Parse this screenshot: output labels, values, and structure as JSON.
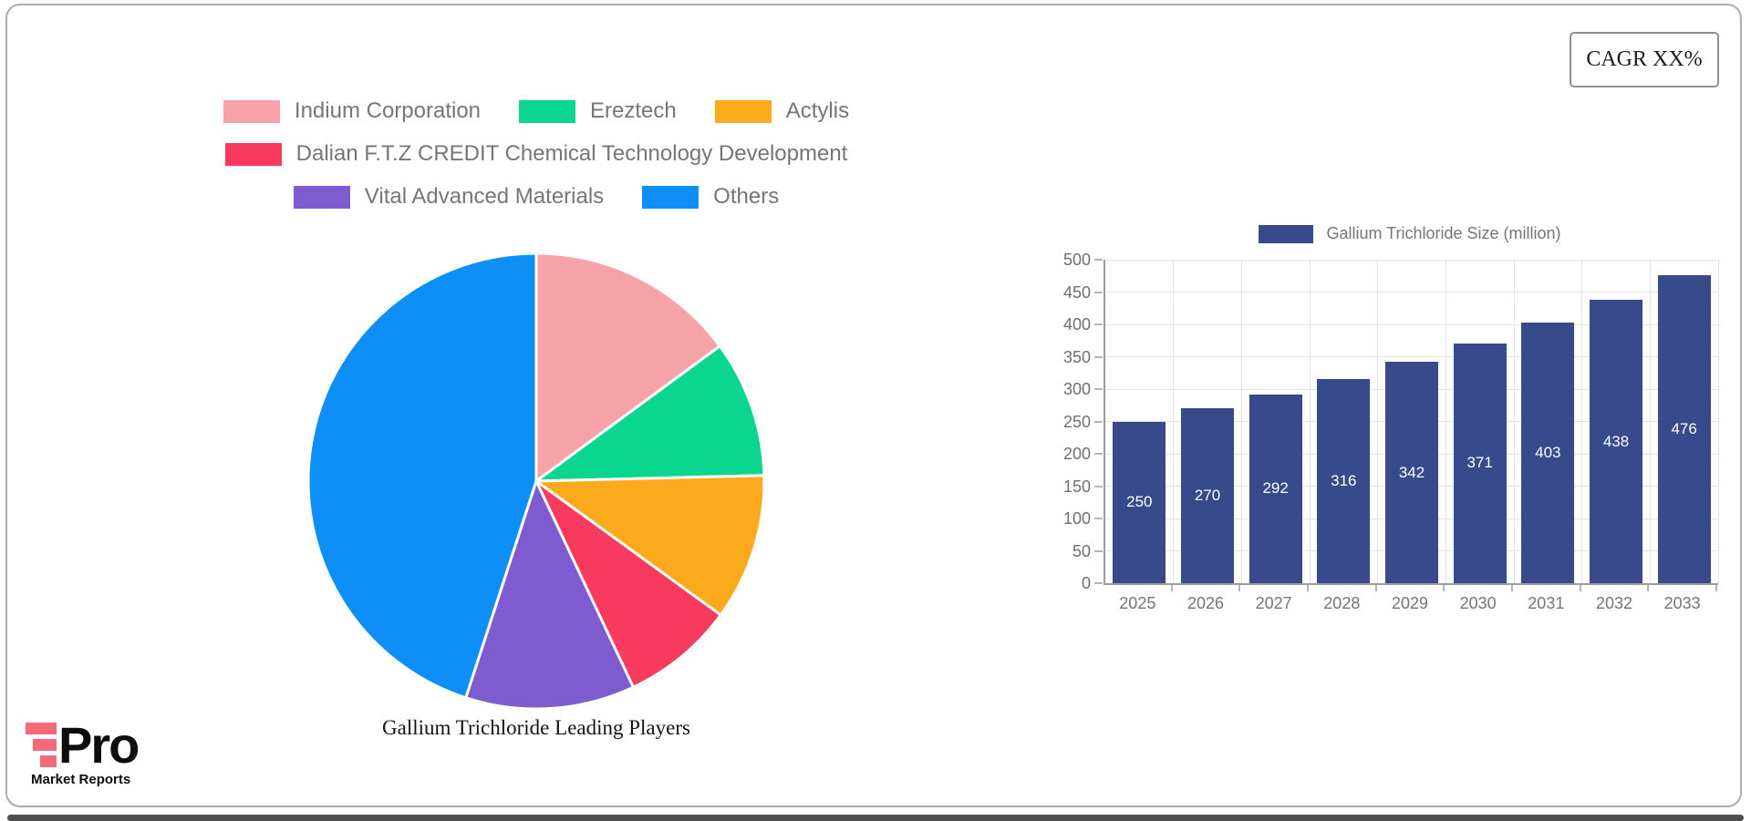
{
  "frame": {
    "cagr_label": "CAGR XX%"
  },
  "logo": {
    "text": "Pro",
    "subtext": "Market Reports",
    "bar_color": "#F4697B"
  },
  "chart_data": [
    {
      "type": "pie",
      "title": "Gallium Trichloride Leading Players",
      "labels": [
        "Indium Corporation",
        "Ereztech",
        "Actylis",
        "Dalian F.T.Z CREDIT Chemical Technology Development",
        "Vital Advanced Materials",
        "Others"
      ],
      "values_pct": [
        14.9,
        9.7,
        10.4,
        8.0,
        12.0,
        45.0
      ],
      "colors": [
        "#F7A2A8",
        "#0BD690",
        "#FBAA1C",
        "#F93A5F",
        "#7F5BD0",
        "#0E8FF8"
      ],
      "legend_rows": [
        [
          0,
          1,
          2
        ],
        [
          3
        ],
        [
          4,
          5
        ]
      ],
      "legend_position": "top",
      "start_angle_deg": 0,
      "direction": "clockwise",
      "slice_border_color": "#FFFFFF"
    },
    {
      "type": "bar",
      "series_label": "Gallium Trichloride Size (million)",
      "categories": [
        "2025",
        "2026",
        "2027",
        "2028",
        "2029",
        "2030",
        "2031",
        "2032",
        "2033"
      ],
      "values": [
        250,
        270,
        292,
        316,
        342,
        371,
        403,
        438,
        476
      ],
      "bar_color": "#364A8C",
      "value_label_color": "#FFFFFF",
      "ylim": [
        0,
        500
      ],
      "ytick_step": 50,
      "grid": true,
      "legend_position": "top"
    }
  ]
}
